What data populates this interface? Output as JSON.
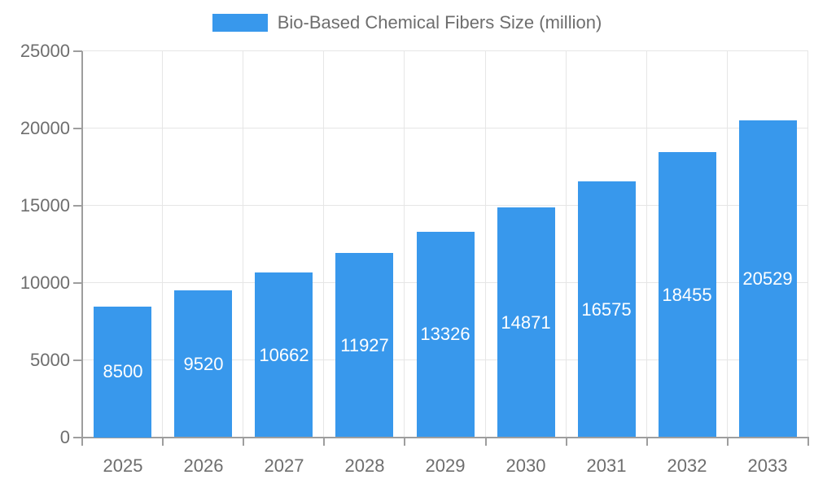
{
  "chart_data": {
    "type": "bar",
    "title": "Bio-Based Chemical Fibers Size (million)",
    "legend": {
      "position": "top",
      "label": "Bio-Based Chemical Fibers Size (million)"
    },
    "categories": [
      "2025",
      "2026",
      "2027",
      "2028",
      "2029",
      "2030",
      "2031",
      "2032",
      "2033"
    ],
    "series": [
      {
        "name": "Bio-Based Chemical Fibers Size (million)",
        "values": [
          8500,
          9520,
          10662,
          11927,
          13326,
          14871,
          16575,
          18455,
          20529
        ]
      }
    ],
    "value_labels": [
      "8500",
      "9520",
      "10662",
      "11927",
      "13326",
      "14871",
      "16575",
      "18455",
      "20529"
    ],
    "xlabel": "",
    "ylabel": "",
    "ylim": [
      0,
      25000
    ],
    "ytick_step": 5000,
    "y_ticks": [
      "0",
      "5000",
      "10000",
      "15000",
      "20000",
      "25000"
    ],
    "grid": true,
    "colors": {
      "bar": "#3898EC",
      "grid": "#E6E6E6",
      "axis": "#9E9E9E",
      "tick": "#9E9E9E",
      "text": "#6E6E6E",
      "value_label": "#FFFFFF",
      "background": "#FFFFFF"
    }
  }
}
